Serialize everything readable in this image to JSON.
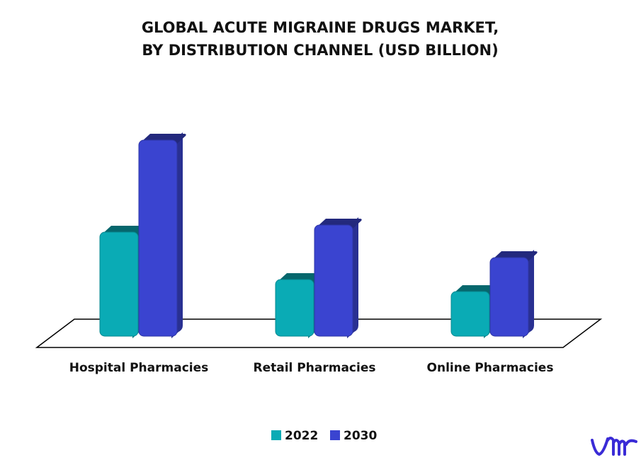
{
  "chart_data": {
    "type": "bar3d",
    "title": [
      "GLOBAL ACUTE MIGRAINE DRUGS MARKET,",
      "BY DISTRIBUTION CHANNEL (USD BILLION)"
    ],
    "categories": [
      "Hospital Pharmacies",
      "Retail Pharmacies",
      "Online Pharmacies"
    ],
    "series": [
      {
        "name": "2022",
        "color": "#0aabb5",
        "values": [
          1.47,
          0.8,
          0.63
        ]
      },
      {
        "name": "2030",
        "color": "#3a44d0",
        "values": [
          2.77,
          1.57,
          1.11
        ]
      }
    ]
  }
}
